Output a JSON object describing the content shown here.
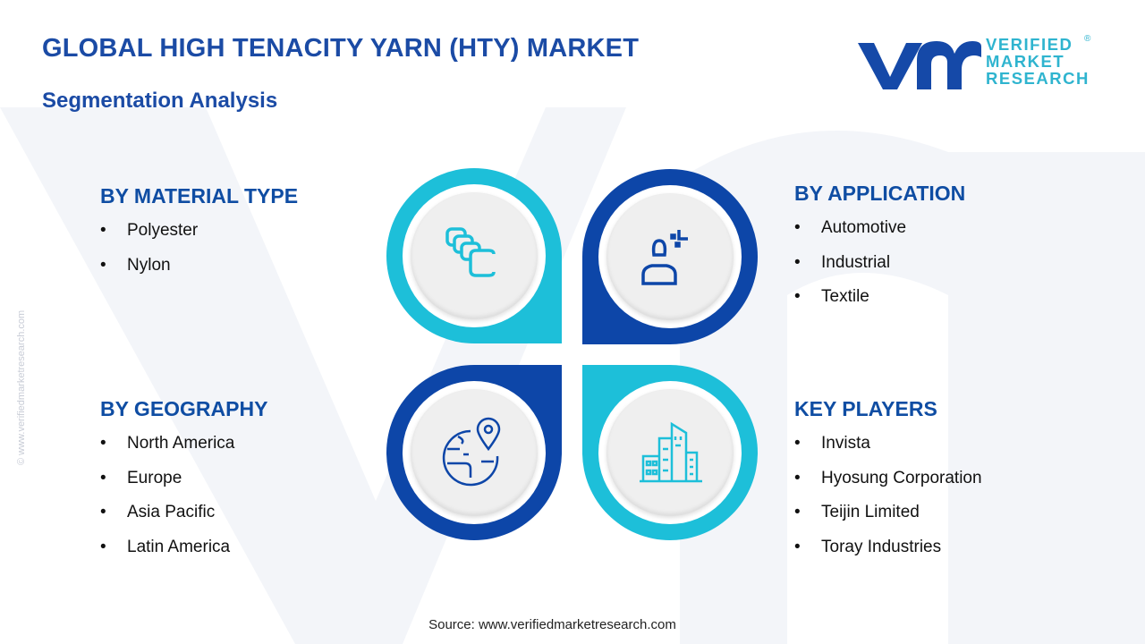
{
  "header": {
    "title": "GLOBAL HIGH TENACITY YARN (HTY) MARKET",
    "subtitle": "Segmentation Analysis"
  },
  "logo": {
    "line1": "VERIFIED",
    "line2": "MARKET",
    "line3": "RESEARCH",
    "registered": "®"
  },
  "watermark": "© www.verifiedmarketresearch.com",
  "colors": {
    "cyan": "#1dbfd9",
    "dark_blue": "#0d46a8",
    "heading": "#0f4da3"
  },
  "sections": {
    "material": {
      "title": "BY MATERIAL TYPE",
      "items": [
        "Polyester",
        "Nylon"
      ],
      "icon": "fibers-icon"
    },
    "application": {
      "title": "BY APPLICATION",
      "items": [
        "Automotive",
        "Industrial",
        "Textile"
      ],
      "icon": "user-icon"
    },
    "geography": {
      "title": "BY GEOGRAPHY",
      "items": [
        "North America",
        "Europe",
        "Asia Pacific",
        "Latin America"
      ],
      "icon": "globe-pin-icon"
    },
    "players": {
      "title": "KEY PLAYERS",
      "items": [
        "Invista",
        "Hyosung Corporation",
        "Teijin Limited",
        "Toray Industries"
      ],
      "icon": "buildings-icon"
    }
  },
  "bullet": "•",
  "source": "Source: www.verifiedmarketresearch.com"
}
